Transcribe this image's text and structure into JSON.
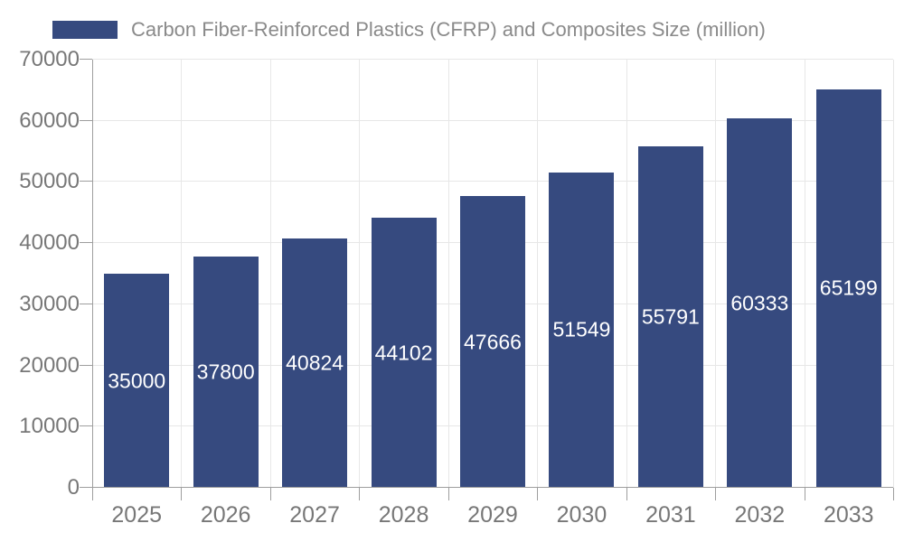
{
  "legend": {
    "label": "Carbon Fiber-Reinforced Plastics (CFRP) and Composites Size (million)"
  },
  "chart_data": {
    "type": "bar",
    "title": "Carbon Fiber-Reinforced Plastics (CFRP) and Composites Size (million)",
    "categories": [
      "2025",
      "2026",
      "2027",
      "2028",
      "2029",
      "2030",
      "2031",
      "2032",
      "2033"
    ],
    "values": [
      35000,
      37800,
      40824,
      44102,
      47666,
      51549,
      55791,
      60333,
      65199
    ],
    "xlabel": "",
    "ylabel": "",
    "ylim": [
      0,
      70000
    ],
    "yticks": [
      0,
      10000,
      20000,
      30000,
      40000,
      50000,
      60000,
      70000
    ],
    "grid": true,
    "legend_position": "top-left",
    "bar_label_position": "center-inside"
  },
  "colors": {
    "bar": "#364a7f",
    "bar_label": "#ffffff",
    "axis_line": "#9e9e9e",
    "tick_line": "#9e9e9e",
    "grid_line": "#e7e7e7",
    "axis_label": "#777777",
    "legend_text": "#8a8a8a",
    "background": "#ffffff"
  }
}
